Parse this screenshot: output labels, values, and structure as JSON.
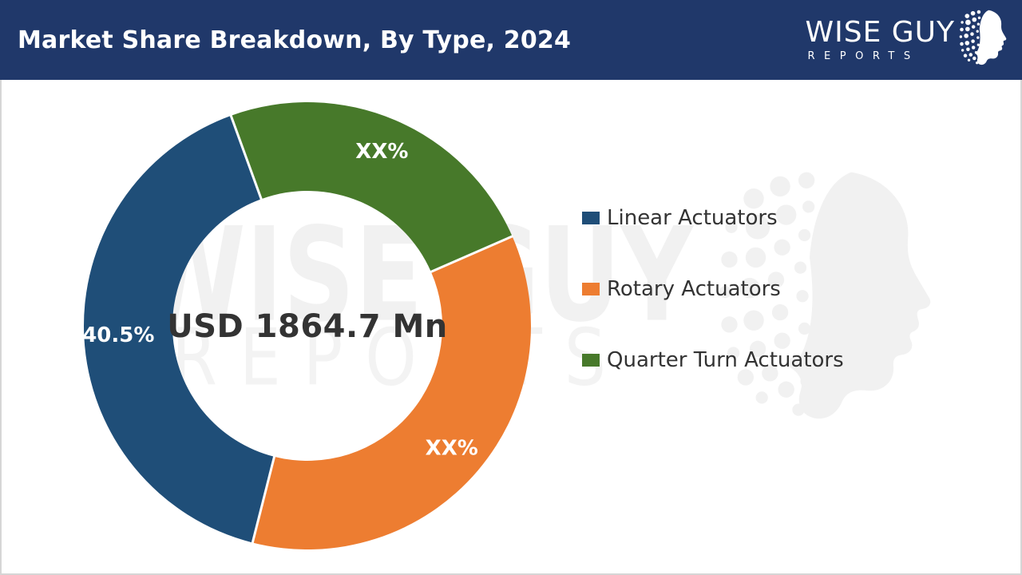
{
  "header": {
    "title": "Market Share Breakdown, By Type, 2024",
    "logo": {
      "line1": "WISE GUY",
      "line2": "REPORTS"
    }
  },
  "watermark": {
    "line1": "WISE GUY",
    "line2": "REPORTS"
  },
  "chart_data": {
    "type": "pie",
    "subtype": "donut",
    "title": "Market Share Breakdown, By Type, 2024",
    "center_label": "USD 1864.7 Mn",
    "start_angle_deg": 110,
    "direction": "counterclockwise",
    "legend_position": "right",
    "segments": [
      {
        "name": "Linear Actuators",
        "display_label": "40.5%",
        "value_pct": 40.5,
        "color": "#1F4E78"
      },
      {
        "name": "Rotary Actuators",
        "display_label": "XX%",
        "value_pct": 35.5,
        "color": "#ED7D31"
      },
      {
        "name": "Quarter Turn Actuators",
        "display_label": "XX%",
        "value_pct": 24.0,
        "color": "#47792A"
      }
    ]
  },
  "colors": {
    "header_bg": "#20386A",
    "title_text": "#ffffff",
    "center_text": "#333333",
    "legend_text": "#333333",
    "watermark": "#f1f1f1",
    "separator": "#ffffff",
    "page_border": "#d6d6d6"
  }
}
